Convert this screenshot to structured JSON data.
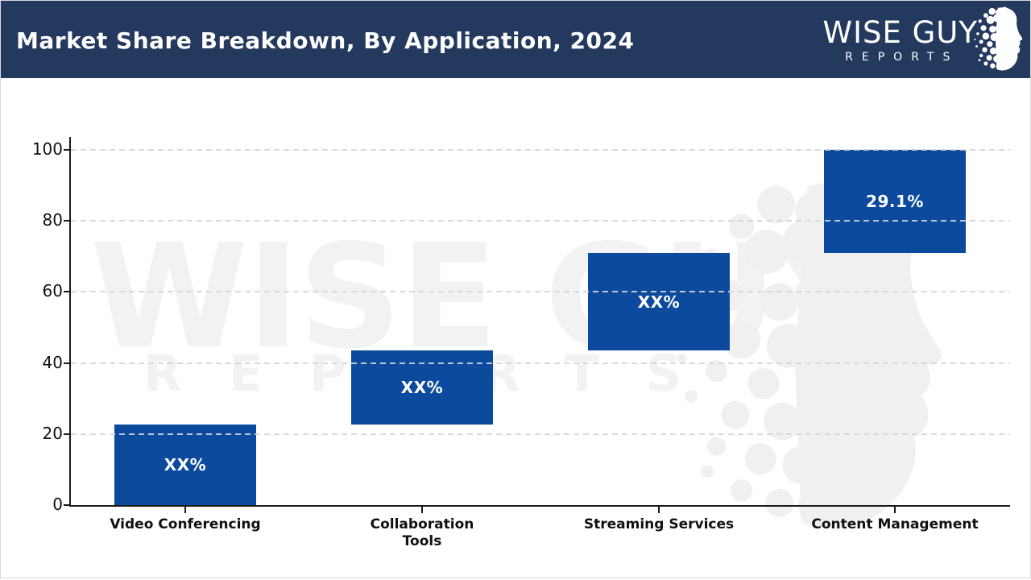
{
  "header": {
    "title": "Market Share Breakdown, By Application, 2024",
    "logo": {
      "name": "WISE GUY",
      "sub": "REPORTS"
    }
  },
  "watermark": {
    "line1": "WISE GUY",
    "line2": "REPORTS"
  },
  "chart_data": {
    "type": "bar",
    "subtype": "waterfall",
    "title": "Market Share Breakdown, By Application, 2024",
    "xlabel": "",
    "ylabel": "",
    "ylim": [
      0,
      100
    ],
    "yticks": [
      0,
      20,
      40,
      60,
      80,
      100
    ],
    "grid": "dashed-horizontal",
    "legend": "none",
    "categories": [
      "Video Conferencing",
      "Collaboration\nTools",
      "Streaming Services",
      "Content Management"
    ],
    "segments": [
      {
        "category": "Video Conferencing",
        "start": 0,
        "end": 22.6,
        "label": "XX%"
      },
      {
        "category": "Collaboration Tools",
        "start": 22.6,
        "end": 43.5,
        "label": "XX%"
      },
      {
        "category": "Streaming Services",
        "start": 43.5,
        "end": 70.9,
        "label": "XX%"
      },
      {
        "category": "Content Management",
        "start": 70.9,
        "end": 100,
        "label": "29.1%"
      }
    ],
    "bar_color": "#0c4a9e",
    "bar_label_color": "#ffffff"
  },
  "colors": {
    "header_bg": "#24395e",
    "bar": "#0c4a9e",
    "grid": "#d5d5d5",
    "axis": "#1a1a1a",
    "watermark": "#f2f2f2"
  }
}
